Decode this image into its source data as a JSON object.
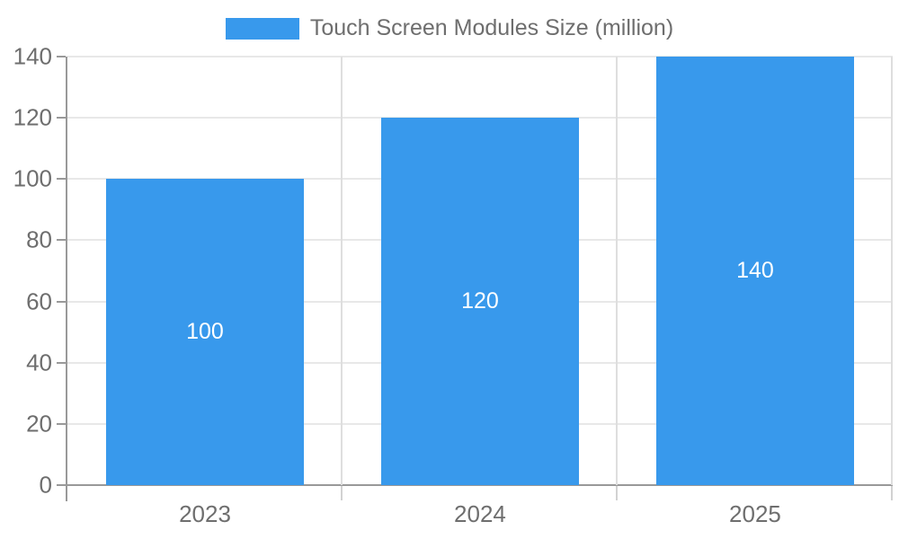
{
  "chart_data": {
    "type": "bar",
    "title": "",
    "legend": "Touch Screen Modules Size (million)",
    "legend_position": "top",
    "categories": [
      "2023",
      "2024",
      "2025"
    ],
    "values": [
      100,
      120,
      140
    ],
    "series": [
      {
        "name": "Touch Screen Modules Size (million)",
        "values": [
          100,
          120,
          140
        ]
      }
    ],
    "xlabel": "",
    "ylabel": "",
    "ylim": [
      0,
      140
    ],
    "yticks": [
      0,
      20,
      40,
      60,
      80,
      100,
      120,
      140
    ],
    "grid": true,
    "data_labels": [
      "100",
      "120",
      "140"
    ],
    "colors": {
      "bar": "#3899ec",
      "bar_label": "#ffffff",
      "axis": "#999999",
      "gridline": "#e8e8e8",
      "tick_text": "#6e6e6e"
    }
  }
}
